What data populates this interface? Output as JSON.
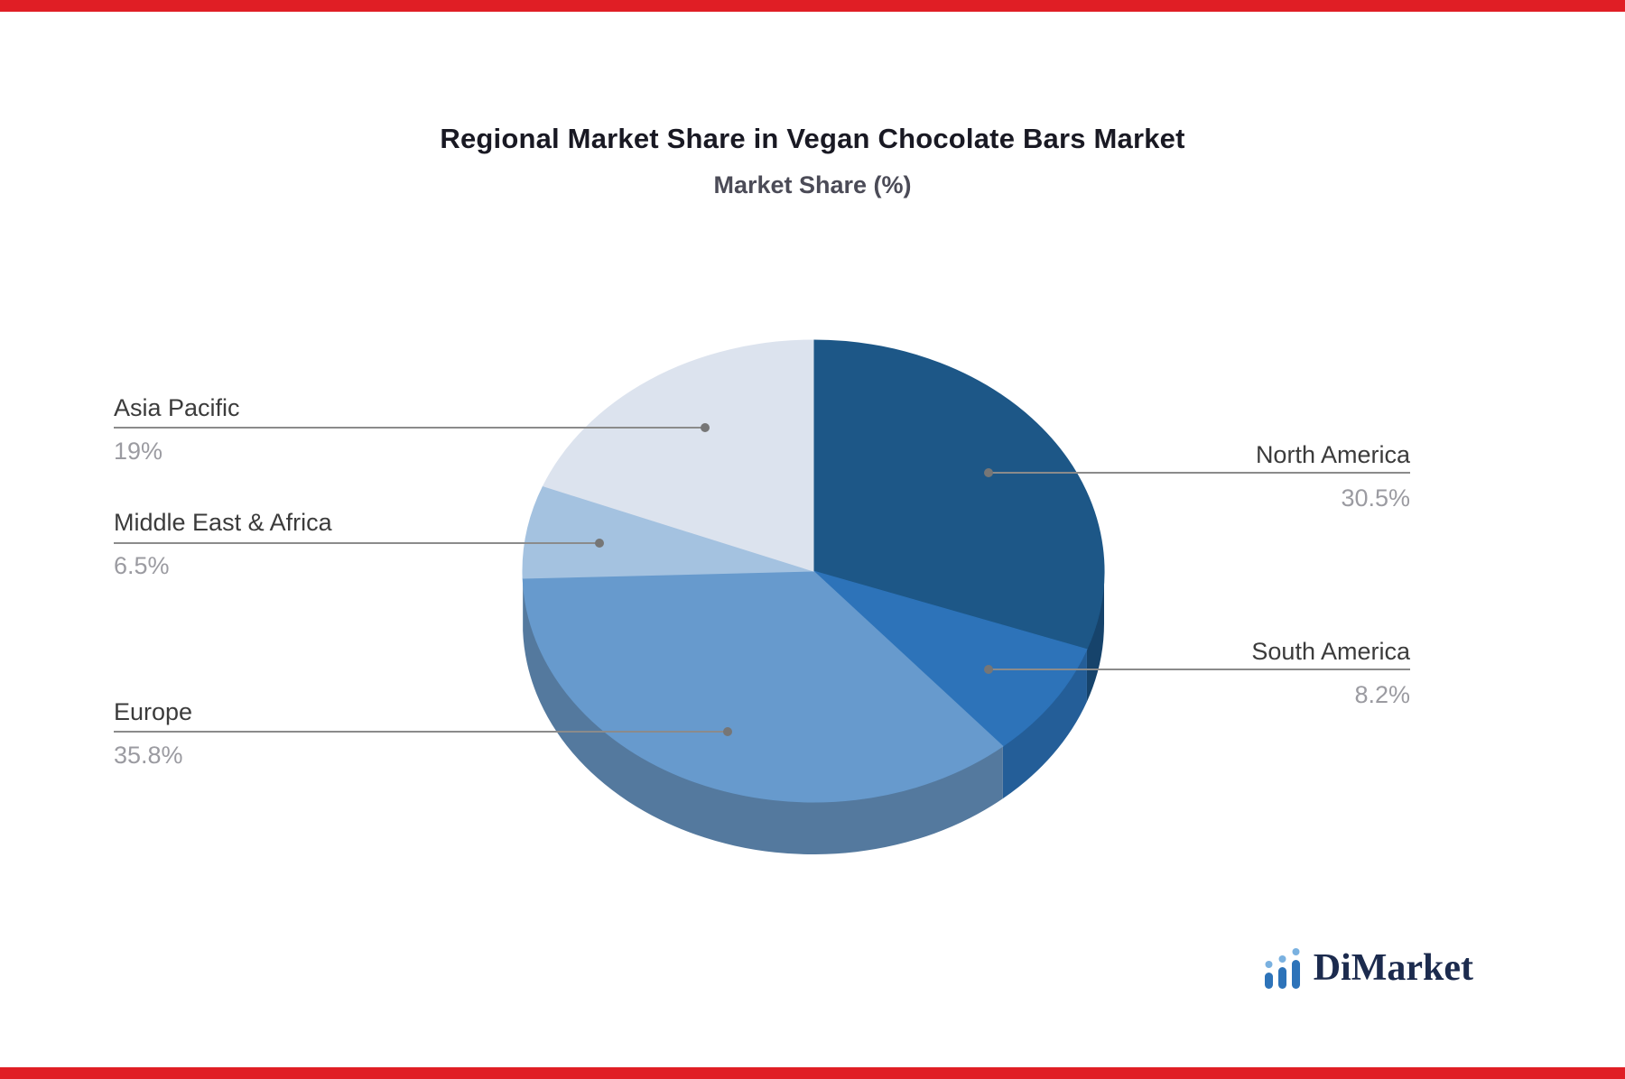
{
  "page": {
    "background": "#ffffff",
    "border_bar_color": "#e01e25"
  },
  "chart_data": {
    "type": "pie",
    "title": "Regional Market Share in Vegan Chocolate Bars Market",
    "subtitle": "Market Share (%)",
    "unit": "%",
    "start_angle": "12 o'clock",
    "direction": "clockwise",
    "style": "3d",
    "legend_position": "callout-labels",
    "slices": [
      {
        "label": "North America",
        "value": 30.5,
        "display": "30.5%",
        "color": "#1d5787",
        "side_color": "#16436b",
        "label_side": "right"
      },
      {
        "label": "South America",
        "value": 8.2,
        "display": "8.2%",
        "color": "#2d73b9",
        "side_color": "#245e98",
        "label_side": "right"
      },
      {
        "label": "Europe",
        "value": 35.8,
        "display": "35.8%",
        "color": "#679acd",
        "side_color": "#54799e",
        "label_side": "left"
      },
      {
        "label": "Middle East & Africa",
        "value": 6.5,
        "display": "6.5%",
        "color": "#a4c2e0",
        "side_color": "#8aa9c7",
        "label_side": "left"
      },
      {
        "label": "Asia Pacific",
        "value": 19,
        "display": "19%",
        "color": "#dce3ee",
        "side_color": "#b9c4d6",
        "label_side": "left"
      }
    ],
    "callout_line_color": "#8b8b8b",
    "callout_dot_color": "#767676",
    "label_name_color": "#3b3b3b",
    "label_value_color": "#9b9ba1"
  },
  "logo": {
    "text": "DiMarket",
    "text_color": "#1c2b4e",
    "bar_color": "#2d73b9",
    "dot_color": "#7ab1e0"
  }
}
